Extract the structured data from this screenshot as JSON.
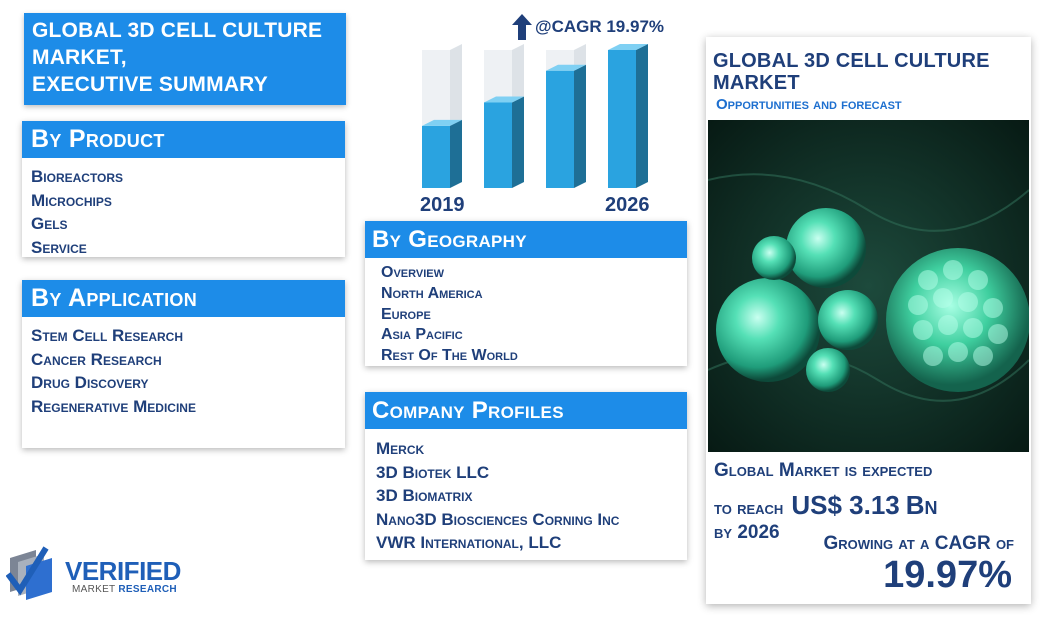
{
  "header": {
    "title_lines": [
      "GLOBAL 3D CELL CULTURE",
      "MARKET,",
      "EXECUTIVE SUMMARY"
    ]
  },
  "by_product": {
    "heading": "By Product",
    "items": [
      "Bioreactors",
      "Microchips",
      "Gels",
      "Service"
    ]
  },
  "by_application": {
    "heading": "By Application",
    "items": [
      "Stem Cell Research",
      "Cancer Research",
      "Drug Discovery",
      "Regenerative Medicine"
    ]
  },
  "by_geography": {
    "heading": "By Geography",
    "items": [
      "Overview",
      "North America",
      "Europe",
      "Asia Pacific",
      "Rest Of The World"
    ]
  },
  "company_profiles": {
    "heading": "Company Profiles",
    "items": [
      "Merck",
      "3D Biotek LLC",
      "3D Biomatrix",
      "Nano3D Biosciences Corning Inc",
      "VWR International, LLC"
    ]
  },
  "growth_chart": {
    "cagr_label": "@CAGR 19.97%",
    "year_start": "2019",
    "year_end": "2026",
    "bar_fill_levels": [
      0.45,
      0.62,
      0.85,
      1.0
    ],
    "bar_color": "#2aa3e0"
  },
  "right_panel": {
    "title_lines": [
      "GLOBAL 3D CELL CULTURE",
      "MARKET"
    ],
    "subtitle": "Opportunities and forecast",
    "expect_line1": "Global Market is expected",
    "expect_line2_prefix": "to reach",
    "market_value": "US$ 3.13",
    "market_unit": "Bn",
    "expect_line3": "by 2026",
    "growing_text": "Growing at a CAGR of",
    "cagr_value": "19.97%"
  },
  "logo": {
    "word": "VERIFIED",
    "sub_part1": "MARKET",
    "sub_part2": "RESEARCH"
  },
  "colors": {
    "accent_blue": "#1d8ce8",
    "navy_text": "#1f3f7a",
    "cell_green": "#3dd3a8"
  }
}
